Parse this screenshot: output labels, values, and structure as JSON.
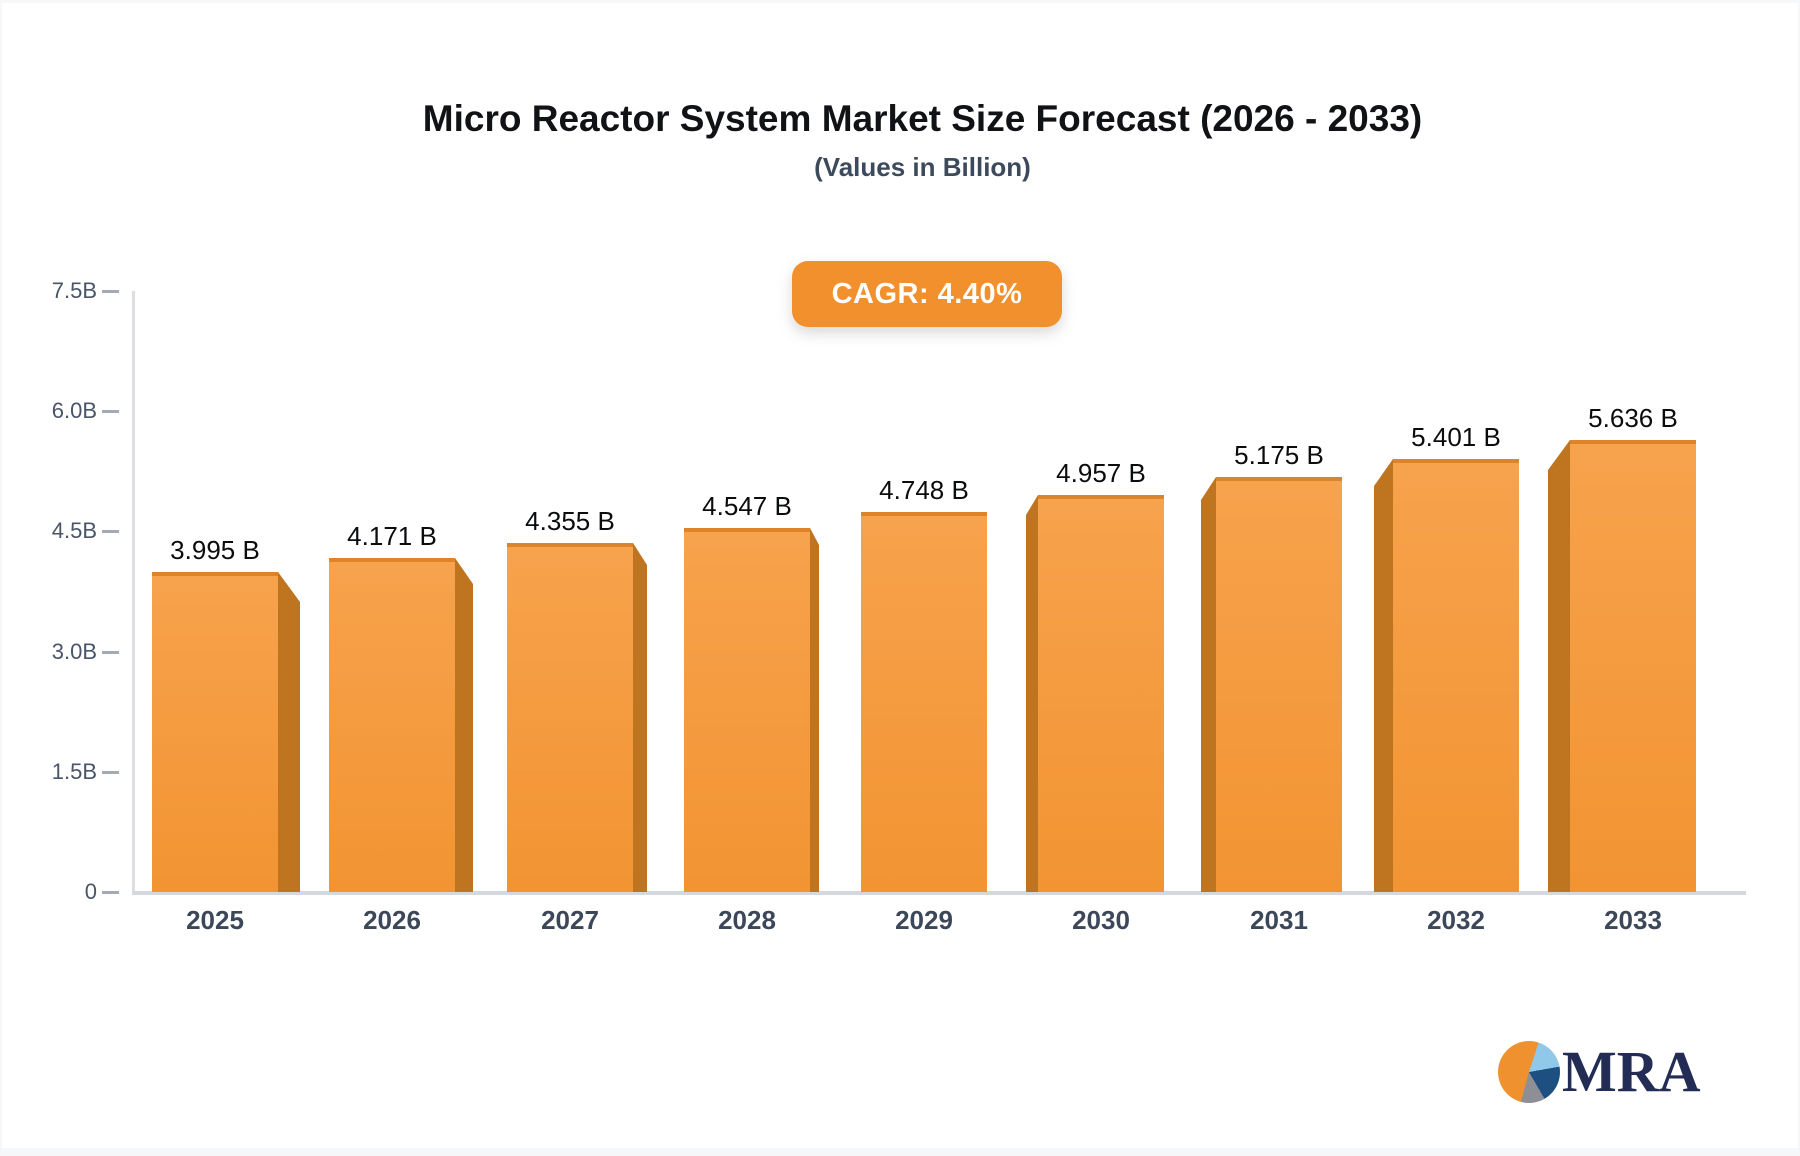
{
  "chart_data": {
    "type": "bar",
    "title": "Micro Reactor System Market Size Forecast (2026 - 2033)",
    "subtitle": "(Values in Billion)",
    "annotation": "CAGR: 4.40%",
    "categories": [
      "2025",
      "2026",
      "2027",
      "2028",
      "2029",
      "2030",
      "2031",
      "2032",
      "2033"
    ],
    "values": [
      3.995,
      4.171,
      4.355,
      4.547,
      4.748,
      4.957,
      5.175,
      5.401,
      5.636
    ],
    "bar_labels": [
      "3.995 B",
      "4.171 B",
      "4.355 B",
      "4.547 B",
      "4.748 B",
      "4.957 B",
      "5.175 B",
      "5.401 B",
      "5.636 B"
    ],
    "y_ticks": [
      {
        "label": "7.5B",
        "value": 7.5
      },
      {
        "label": "6.0B",
        "value": 6.0
      },
      {
        "label": "4.5B",
        "value": 4.5
      },
      {
        "label": "3.0B",
        "value": 3.0
      },
      {
        "label": "1.5B",
        "value": 1.5
      },
      {
        "label": "0",
        "value": 0
      }
    ],
    "ylim": [
      0,
      7.5
    ],
    "grid": false,
    "legend": "none",
    "colors": {
      "bar_face_top": "#f7a24d",
      "bar_face_bottom": "#f29432",
      "bar_top_edge": "#dd8329",
      "bar_side": "#bf7420",
      "badge": "#f1902c",
      "axis": "#d5d8dd",
      "tick_text": "#4a5568",
      "category_text": "#3c4859"
    }
  },
  "logo": {
    "text": "MRA",
    "pie_colors": {
      "orange": "#f0912f",
      "light_blue": "#8fc8e9",
      "navy": "#1d5080",
      "gray": "#8e8e96"
    }
  }
}
